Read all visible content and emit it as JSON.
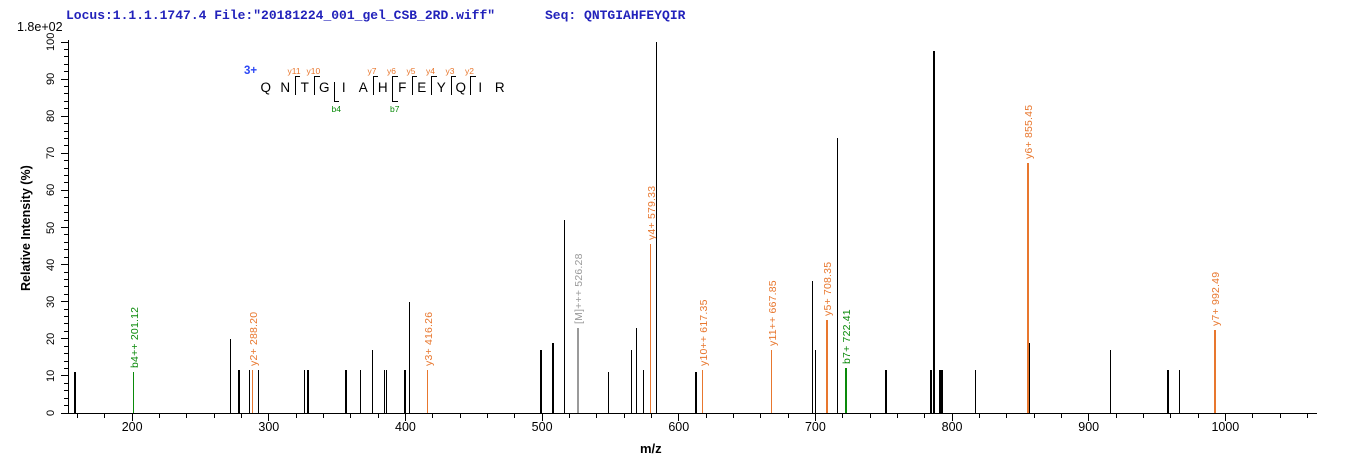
{
  "header": {
    "locus_file": "Locus:1.1.1.1747.4 File:\"20181224_001_gel_CSB_2RD.wiff\"",
    "seq_label": "Seq: ",
    "sequence": "QNTGIAHFEYQIR"
  },
  "colors": {
    "header_text": "#2222bb",
    "charge_label": "#2b47f5",
    "y_ion": "#e8772e",
    "b_ion": "#0a8a0a",
    "precursor": "#9a9a9a",
    "peak": "#000000"
  },
  "peptide_annotation": {
    "charge": "3+",
    "residues": [
      "Q",
      "N",
      "T",
      "G",
      "I",
      "A",
      "H",
      "F",
      "E",
      "Y",
      "Q",
      "I",
      "R"
    ],
    "cleavages": [
      {
        "before_residue_index": 2,
        "top": "y11",
        "bottom": null
      },
      {
        "before_residue_index": 3,
        "top": "y10",
        "bottom": null
      },
      {
        "before_residue_index": 4,
        "top": null,
        "bottom": "b4"
      },
      {
        "before_residue_index": 6,
        "top": "y7",
        "bottom": null
      },
      {
        "before_residue_index": 7,
        "top": "y6",
        "bottom": "b7"
      },
      {
        "before_residue_index": 8,
        "top": "y5",
        "bottom": null
      },
      {
        "before_residue_index": 9,
        "top": "y4",
        "bottom": null
      },
      {
        "before_residue_index": 10,
        "top": "y3",
        "bottom": null
      },
      {
        "before_residue_index": 11,
        "top": "y2",
        "bottom": null
      }
    ]
  },
  "chart_data": {
    "type": "bar",
    "subtype": "mass-spectrum-stick-plot",
    "title": "",
    "xlabel": "m/z",
    "ylabel": "Relative  Intensity (%)",
    "y_scale_label": "1.8e+02",
    "xlim": [
      153,
      1067
    ],
    "ylim": [
      0,
      100
    ],
    "x_major_ticks": [
      200,
      300,
      400,
      500,
      600,
      700,
      800,
      900,
      1000
    ],
    "x_minor_tick_step": 20,
    "y_major_tick_step": 10,
    "y_minor_tick_step": 2,
    "grid": false,
    "legend": "none",
    "peaks": [
      {
        "mz": 158.0,
        "intensity": 11,
        "series": "unassigned"
      },
      {
        "mz": 201.12,
        "intensity": 11,
        "series": "fragment_b",
        "label": "b4++ 201.12"
      },
      {
        "mz": 272.0,
        "intensity": 20,
        "series": "unassigned"
      },
      {
        "mz": 278.0,
        "intensity": 11.5,
        "series": "unassigned"
      },
      {
        "mz": 286.0,
        "intensity": 11.5,
        "series": "unassigned"
      },
      {
        "mz": 288.2,
        "intensity": 11.5,
        "series": "fragment_y",
        "label": "y2+ 288.20"
      },
      {
        "mz": 292.5,
        "intensity": 11.5,
        "series": "unassigned"
      },
      {
        "mz": 326.0,
        "intensity": 11.5,
        "series": "unassigned"
      },
      {
        "mz": 328.5,
        "intensity": 11.5,
        "series": "unassigned"
      },
      {
        "mz": 356.5,
        "intensity": 11.5,
        "series": "unassigned"
      },
      {
        "mz": 367.0,
        "intensity": 11.5,
        "series": "unassigned"
      },
      {
        "mz": 376.0,
        "intensity": 17,
        "series": "unassigned"
      },
      {
        "mz": 384.5,
        "intensity": 11.5,
        "series": "unassigned"
      },
      {
        "mz": 386.0,
        "intensity": 11.5,
        "series": "unassigned"
      },
      {
        "mz": 399.5,
        "intensity": 11.5,
        "series": "unassigned"
      },
      {
        "mz": 403.0,
        "intensity": 30,
        "series": "unassigned"
      },
      {
        "mz": 416.26,
        "intensity": 11.5,
        "series": "fragment_y",
        "label": "y3+ 416.26"
      },
      {
        "mz": 499.0,
        "intensity": 17,
        "series": "unassigned"
      },
      {
        "mz": 508.0,
        "intensity": 19,
        "series": "unassigned"
      },
      {
        "mz": 516.5,
        "intensity": 52,
        "series": "unassigned"
      },
      {
        "mz": 526.28,
        "intensity": 23,
        "series": "precursor",
        "label": "[M]+++ 526.28"
      },
      {
        "mz": 548.5,
        "intensity": 11,
        "series": "unassigned"
      },
      {
        "mz": 565.5,
        "intensity": 17,
        "series": "unassigned"
      },
      {
        "mz": 569.0,
        "intensity": 23,
        "series": "unassigned"
      },
      {
        "mz": 574.0,
        "intensity": 11.5,
        "series": "unassigned"
      },
      {
        "mz": 579.33,
        "intensity": 45.5,
        "series": "fragment_y",
        "label": "y4+ 579.33"
      },
      {
        "mz": 583.5,
        "intensity": 100,
        "series": "unassigned"
      },
      {
        "mz": 612.5,
        "intensity": 11,
        "series": "unassigned"
      },
      {
        "mz": 617.35,
        "intensity": 11.5,
        "series": "fragment_y",
        "label": "y10++ 617.35"
      },
      {
        "mz": 667.85,
        "intensity": 17,
        "series": "fragment_y",
        "label": "y11++ 667.85"
      },
      {
        "mz": 698.0,
        "intensity": 35.5,
        "series": "unassigned"
      },
      {
        "mz": 700.0,
        "intensity": 17,
        "series": "unassigned"
      },
      {
        "mz": 708.35,
        "intensity": 25,
        "series": "fragment_y",
        "label": "y5+ 708.35"
      },
      {
        "mz": 716.0,
        "intensity": 74,
        "series": "unassigned"
      },
      {
        "mz": 722.41,
        "intensity": 12,
        "series": "fragment_b",
        "label": "b7+ 722.41"
      },
      {
        "mz": 751.5,
        "intensity": 11.5,
        "series": "unassigned"
      },
      {
        "mz": 784.5,
        "intensity": 11.5,
        "series": "unassigned"
      },
      {
        "mz": 786.7,
        "intensity": 97.5,
        "series": "unassigned"
      },
      {
        "mz": 791.0,
        "intensity": 11.5,
        "series": "unassigned"
      },
      {
        "mz": 792.5,
        "intensity": 11.5,
        "series": "unassigned"
      },
      {
        "mz": 817.0,
        "intensity": 11.5,
        "series": "unassigned"
      },
      {
        "mz": 855.45,
        "intensity": 67.5,
        "series": "fragment_y",
        "label": "y6+ 855.45"
      },
      {
        "mz": 856.8,
        "intensity": 19,
        "series": "unassigned"
      },
      {
        "mz": 916.0,
        "intensity": 17,
        "series": "unassigned"
      },
      {
        "mz": 958.0,
        "intensity": 11.5,
        "series": "unassigned"
      },
      {
        "mz": 966.5,
        "intensity": 11.5,
        "series": "unassigned"
      },
      {
        "mz": 992.49,
        "intensity": 22.5,
        "series": "fragment_y",
        "label": "y7+ 992.49"
      }
    ]
  }
}
